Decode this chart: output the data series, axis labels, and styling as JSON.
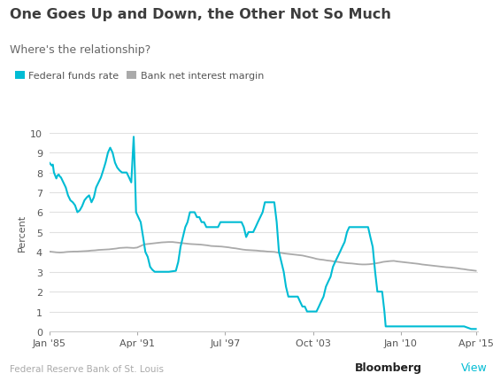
{
  "title": "One Goes Up and Down, the Other Not So Much",
  "subtitle": "Where's the relationship?",
  "ylabel": "Percent",
  "source": "Federal Reserve Bank of St. Louis",
  "branding_black": "Bloomberg",
  "branding_cyan": "View",
  "ylim": [
    0,
    10
  ],
  "yticks": [
    0,
    1,
    2,
    3,
    4,
    5,
    6,
    7,
    8,
    9,
    10
  ],
  "xtick_labels": [
    "Jan '85",
    "Apr '91",
    "Jul '97",
    "Oct '03",
    "Jan '10",
    "Apr '15"
  ],
  "legend_labels": [
    "Federal funds rate",
    "Bank net interest margin"
  ],
  "fed_color": "#00bcd4",
  "nim_color": "#aaaaaa",
  "title_color": "#3d3d3d",
  "subtitle_color": "#666666",
  "source_color": "#aaaaaa",
  "grid_color": "#e0e0e0",
  "background_color": "#ffffff",
  "fed_funds_rate": [
    [
      1985.0,
      8.5
    ],
    [
      1985.17,
      8.35
    ],
    [
      1985.25,
      8.4
    ],
    [
      1985.33,
      8.0
    ],
    [
      1985.5,
      7.7
    ],
    [
      1985.58,
      7.85
    ],
    [
      1985.67,
      7.9
    ],
    [
      1985.75,
      7.8
    ],
    [
      1985.83,
      7.75
    ],
    [
      1986.0,
      7.5
    ],
    [
      1986.17,
      7.25
    ],
    [
      1986.33,
      6.85
    ],
    [
      1986.5,
      6.6
    ],
    [
      1986.67,
      6.5
    ],
    [
      1986.83,
      6.35
    ],
    [
      1987.0,
      6.0
    ],
    [
      1987.17,
      6.1
    ],
    [
      1987.33,
      6.3
    ],
    [
      1987.5,
      6.6
    ],
    [
      1987.67,
      6.75
    ],
    [
      1987.83,
      6.85
    ],
    [
      1988.0,
      6.5
    ],
    [
      1988.17,
      6.75
    ],
    [
      1988.33,
      7.25
    ],
    [
      1988.5,
      7.5
    ],
    [
      1988.67,
      7.75
    ],
    [
      1988.83,
      8.1
    ],
    [
      1989.0,
      8.5
    ],
    [
      1989.17,
      9.0
    ],
    [
      1989.33,
      9.25
    ],
    [
      1989.5,
      9.0
    ],
    [
      1989.67,
      8.5
    ],
    [
      1989.83,
      8.25
    ],
    [
      1990.0,
      8.1
    ],
    [
      1990.17,
      8.0
    ],
    [
      1990.33,
      8.0
    ],
    [
      1990.5,
      8.0
    ],
    [
      1990.67,
      7.75
    ],
    [
      1990.83,
      7.5
    ],
    [
      1991.0,
      9.8
    ],
    [
      1991.08,
      8.2
    ],
    [
      1991.17,
      6.0
    ],
    [
      1991.33,
      5.75
    ],
    [
      1991.5,
      5.5
    ],
    [
      1991.67,
      4.75
    ],
    [
      1991.83,
      4.0
    ],
    [
      1992.0,
      3.75
    ],
    [
      1992.17,
      3.25
    ],
    [
      1992.33,
      3.1
    ],
    [
      1992.5,
      3.0
    ],
    [
      1992.67,
      3.0
    ],
    [
      1992.83,
      3.0
    ],
    [
      1993.0,
      3.0
    ],
    [
      1993.5,
      3.0
    ],
    [
      1994.0,
      3.05
    ],
    [
      1994.17,
      3.5
    ],
    [
      1994.33,
      4.25
    ],
    [
      1994.5,
      4.75
    ],
    [
      1994.67,
      5.25
    ],
    [
      1994.83,
      5.5
    ],
    [
      1995.0,
      6.0
    ],
    [
      1995.17,
      6.0
    ],
    [
      1995.33,
      6.0
    ],
    [
      1995.5,
      5.75
    ],
    [
      1995.67,
      5.75
    ],
    [
      1995.83,
      5.5
    ],
    [
      1996.0,
      5.5
    ],
    [
      1996.17,
      5.25
    ],
    [
      1996.33,
      5.25
    ],
    [
      1996.5,
      5.25
    ],
    [
      1996.67,
      5.25
    ],
    [
      1996.83,
      5.25
    ],
    [
      1997.0,
      5.25
    ],
    [
      1997.17,
      5.5
    ],
    [
      1997.33,
      5.5
    ],
    [
      1997.5,
      5.5
    ],
    [
      1997.67,
      5.5
    ],
    [
      1997.83,
      5.5
    ],
    [
      1998.0,
      5.5
    ],
    [
      1998.17,
      5.5
    ],
    [
      1998.33,
      5.5
    ],
    [
      1998.5,
      5.5
    ],
    [
      1998.67,
      5.5
    ],
    [
      1998.83,
      5.25
    ],
    [
      1999.0,
      4.75
    ],
    [
      1999.17,
      5.0
    ],
    [
      1999.33,
      5.0
    ],
    [
      1999.5,
      5.0
    ],
    [
      1999.67,
      5.25
    ],
    [
      1999.83,
      5.5
    ],
    [
      2000.0,
      5.75
    ],
    [
      2000.17,
      6.0
    ],
    [
      2000.33,
      6.5
    ],
    [
      2000.5,
      6.5
    ],
    [
      2000.67,
      6.5
    ],
    [
      2000.83,
      6.5
    ],
    [
      2001.0,
      6.5
    ],
    [
      2001.17,
      5.5
    ],
    [
      2001.33,
      4.0
    ],
    [
      2001.5,
      3.5
    ],
    [
      2001.67,
      3.0
    ],
    [
      2001.83,
      2.25
    ],
    [
      2002.0,
      1.75
    ],
    [
      2002.17,
      1.75
    ],
    [
      2002.33,
      1.75
    ],
    [
      2002.5,
      1.75
    ],
    [
      2002.67,
      1.75
    ],
    [
      2002.83,
      1.5
    ],
    [
      2003.0,
      1.25
    ],
    [
      2003.17,
      1.25
    ],
    [
      2003.33,
      1.0
    ],
    [
      2003.5,
      1.0
    ],
    [
      2003.67,
      1.0
    ],
    [
      2003.83,
      1.0
    ],
    [
      2004.0,
      1.0
    ],
    [
      2004.17,
      1.25
    ],
    [
      2004.33,
      1.5
    ],
    [
      2004.5,
      1.75
    ],
    [
      2004.67,
      2.25
    ],
    [
      2004.83,
      2.5
    ],
    [
      2005.0,
      2.75
    ],
    [
      2005.17,
      3.25
    ],
    [
      2005.33,
      3.5
    ],
    [
      2005.5,
      3.75
    ],
    [
      2005.67,
      4.0
    ],
    [
      2005.83,
      4.25
    ],
    [
      2006.0,
      4.5
    ],
    [
      2006.17,
      5.0
    ],
    [
      2006.33,
      5.25
    ],
    [
      2006.5,
      5.25
    ],
    [
      2006.67,
      5.25
    ],
    [
      2006.83,
      5.25
    ],
    [
      2007.0,
      5.25
    ],
    [
      2007.17,
      5.25
    ],
    [
      2007.33,
      5.25
    ],
    [
      2007.5,
      5.25
    ],
    [
      2007.67,
      5.25
    ],
    [
      2007.83,
      4.75
    ],
    [
      2008.0,
      4.25
    ],
    [
      2008.17,
      3.0
    ],
    [
      2008.33,
      2.0
    ],
    [
      2008.5,
      2.0
    ],
    [
      2008.67,
      2.0
    ],
    [
      2008.83,
      1.0
    ],
    [
      2008.92,
      0.25
    ],
    [
      2009.0,
      0.25
    ],
    [
      2009.5,
      0.25
    ],
    [
      2010.0,
      0.25
    ],
    [
      2010.5,
      0.25
    ],
    [
      2011.0,
      0.25
    ],
    [
      2011.5,
      0.25
    ],
    [
      2012.0,
      0.25
    ],
    [
      2012.5,
      0.25
    ],
    [
      2013.0,
      0.25
    ],
    [
      2013.5,
      0.25
    ],
    [
      2014.0,
      0.25
    ],
    [
      2014.5,
      0.25
    ],
    [
      2015.0,
      0.12
    ],
    [
      2015.33,
      0.12
    ]
  ],
  "bank_nim": [
    [
      1985.0,
      4.02
    ],
    [
      1985.25,
      4.0
    ],
    [
      1985.5,
      3.98
    ],
    [
      1985.75,
      3.97
    ],
    [
      1986.0,
      3.98
    ],
    [
      1986.25,
      4.0
    ],
    [
      1986.5,
      4.01
    ],
    [
      1986.75,
      4.02
    ],
    [
      1987.0,
      4.02
    ],
    [
      1987.25,
      4.03
    ],
    [
      1987.5,
      4.04
    ],
    [
      1987.75,
      4.05
    ],
    [
      1988.0,
      4.07
    ],
    [
      1988.25,
      4.08
    ],
    [
      1988.5,
      4.1
    ],
    [
      1988.75,
      4.11
    ],
    [
      1989.0,
      4.12
    ],
    [
      1989.25,
      4.13
    ],
    [
      1989.5,
      4.15
    ],
    [
      1989.75,
      4.17
    ],
    [
      1990.0,
      4.2
    ],
    [
      1990.25,
      4.21
    ],
    [
      1990.5,
      4.22
    ],
    [
      1990.75,
      4.21
    ],
    [
      1991.0,
      4.2
    ],
    [
      1991.25,
      4.22
    ],
    [
      1991.5,
      4.3
    ],
    [
      1991.75,
      4.38
    ],
    [
      1992.0,
      4.4
    ],
    [
      1992.25,
      4.42
    ],
    [
      1992.5,
      4.44
    ],
    [
      1992.75,
      4.46
    ],
    [
      1993.0,
      4.48
    ],
    [
      1993.25,
      4.49
    ],
    [
      1993.5,
      4.5
    ],
    [
      1993.75,
      4.5
    ],
    [
      1994.0,
      4.48
    ],
    [
      1994.25,
      4.46
    ],
    [
      1994.5,
      4.44
    ],
    [
      1994.75,
      4.42
    ],
    [
      1995.0,
      4.4
    ],
    [
      1995.25,
      4.39
    ],
    [
      1995.5,
      4.38
    ],
    [
      1995.75,
      4.37
    ],
    [
      1996.0,
      4.35
    ],
    [
      1996.25,
      4.33
    ],
    [
      1996.5,
      4.3
    ],
    [
      1996.75,
      4.29
    ],
    [
      1997.0,
      4.28
    ],
    [
      1997.25,
      4.27
    ],
    [
      1997.5,
      4.25
    ],
    [
      1997.75,
      4.23
    ],
    [
      1998.0,
      4.2
    ],
    [
      1998.25,
      4.18
    ],
    [
      1998.5,
      4.15
    ],
    [
      1998.75,
      4.12
    ],
    [
      1999.0,
      4.1
    ],
    [
      1999.25,
      4.09
    ],
    [
      1999.5,
      4.08
    ],
    [
      1999.75,
      4.07
    ],
    [
      2000.0,
      4.05
    ],
    [
      2000.25,
      4.04
    ],
    [
      2000.5,
      4.02
    ],
    [
      2000.75,
      4.01
    ],
    [
      2001.0,
      4.0
    ],
    [
      2001.25,
      3.97
    ],
    [
      2001.5,
      3.95
    ],
    [
      2001.75,
      3.92
    ],
    [
      2002.0,
      3.9
    ],
    [
      2002.25,
      3.88
    ],
    [
      2002.5,
      3.86
    ],
    [
      2002.75,
      3.84
    ],
    [
      2003.0,
      3.82
    ],
    [
      2003.25,
      3.78
    ],
    [
      2003.5,
      3.74
    ],
    [
      2003.75,
      3.7
    ],
    [
      2004.0,
      3.65
    ],
    [
      2004.25,
      3.62
    ],
    [
      2004.5,
      3.6
    ],
    [
      2004.75,
      3.57
    ],
    [
      2005.0,
      3.55
    ],
    [
      2005.25,
      3.52
    ],
    [
      2005.5,
      3.5
    ],
    [
      2005.75,
      3.47
    ],
    [
      2006.0,
      3.45
    ],
    [
      2006.25,
      3.43
    ],
    [
      2006.5,
      3.42
    ],
    [
      2006.75,
      3.4
    ],
    [
      2007.0,
      3.38
    ],
    [
      2007.25,
      3.37
    ],
    [
      2007.5,
      3.37
    ],
    [
      2007.75,
      3.38
    ],
    [
      2008.0,
      3.4
    ],
    [
      2008.25,
      3.43
    ],
    [
      2008.5,
      3.46
    ],
    [
      2008.75,
      3.5
    ],
    [
      2009.0,
      3.52
    ],
    [
      2009.25,
      3.54
    ],
    [
      2009.5,
      3.55
    ],
    [
      2009.75,
      3.52
    ],
    [
      2010.0,
      3.5
    ],
    [
      2010.25,
      3.48
    ],
    [
      2010.5,
      3.46
    ],
    [
      2010.75,
      3.44
    ],
    [
      2011.0,
      3.42
    ],
    [
      2011.25,
      3.4
    ],
    [
      2011.5,
      3.37
    ],
    [
      2011.75,
      3.35
    ],
    [
      2012.0,
      3.33
    ],
    [
      2012.25,
      3.31
    ],
    [
      2012.5,
      3.29
    ],
    [
      2012.75,
      3.27
    ],
    [
      2013.0,
      3.25
    ],
    [
      2013.25,
      3.23
    ],
    [
      2013.5,
      3.22
    ],
    [
      2013.75,
      3.2
    ],
    [
      2014.0,
      3.18
    ],
    [
      2014.25,
      3.15
    ],
    [
      2014.5,
      3.13
    ],
    [
      2014.75,
      3.1
    ],
    [
      2015.0,
      3.08
    ],
    [
      2015.33,
      3.05
    ]
  ],
  "xtick_positions": [
    1985.0,
    1991.25,
    1997.5,
    2003.75,
    2010.0,
    2015.33
  ]
}
